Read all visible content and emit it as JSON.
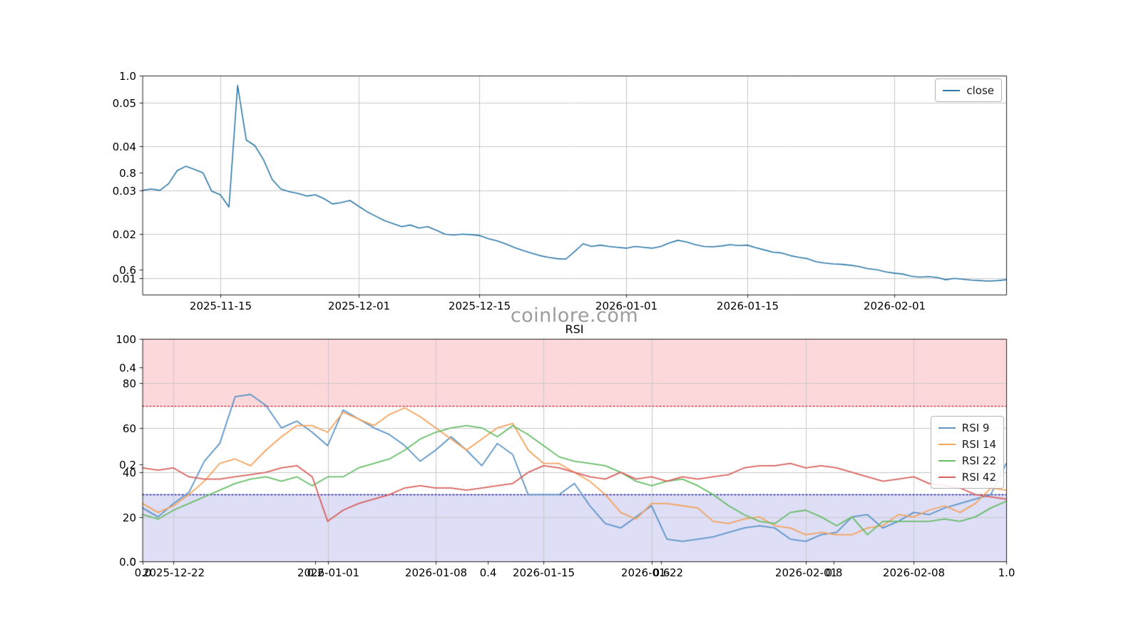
{
  "watermark": "coinlore.com",
  "fraction_axis": {
    "x_ticks": [
      "0.0",
      "0.2",
      "0.4",
      "0.6",
      "0.8",
      "1.0"
    ],
    "y_ticks": [
      "0.0",
      "0.2",
      "0.4",
      "0.6",
      "0.8",
      "1.0"
    ]
  },
  "chart_data": [
    {
      "type": "line",
      "title": "",
      "xlabel": "",
      "ylabel": "",
      "grid": true,
      "legend_position": "upper right",
      "x_start": "2025-11-06",
      "x_end": "2026-02-14",
      "x_tick_labels": [
        "2025-11-15",
        "2025-12-01",
        "2025-12-15",
        "2026-01-01",
        "2026-01-15",
        "2026-02-01"
      ],
      "y_ticks": [
        {
          "value": 0.01,
          "label": "0.01"
        },
        {
          "value": 0.02,
          "label": "0.02"
        },
        {
          "value": 0.03,
          "label": "0.03"
        },
        {
          "value": 0.04,
          "label": "0.04"
        },
        {
          "value": 0.05,
          "label": "0.05"
        }
      ],
      "ylim": [
        0.0062,
        0.0562
      ],
      "series": [
        {
          "name": "close",
          "color": "#2e79a9",
          "values": [
            0.03,
            0.0303,
            0.03,
            0.0315,
            0.0345,
            0.0355,
            0.0348,
            0.034,
            0.0298,
            0.029,
            0.0262,
            0.054,
            0.0415,
            0.0402,
            0.037,
            0.0325,
            0.0303,
            0.0297,
            0.0293,
            0.0287,
            0.029,
            0.0281,
            0.0269,
            0.0272,
            0.0277,
            0.0264,
            0.0251,
            0.0241,
            0.0231,
            0.0224,
            0.0217,
            0.0221,
            0.0214,
            0.0217,
            0.0209,
            0.02,
            0.0198,
            0.02,
            0.0199,
            0.0197,
            0.019,
            0.0185,
            0.0178,
            0.017,
            0.0163,
            0.0157,
            0.0151,
            0.0147,
            0.0144,
            0.0143,
            0.016,
            0.0178,
            0.0172,
            0.0175,
            0.0172,
            0.017,
            0.0168,
            0.0172,
            0.017,
            0.0168,
            0.0172,
            0.018,
            0.0186,
            0.0182,
            0.0176,
            0.0172,
            0.0171,
            0.0173,
            0.0176,
            0.0174,
            0.0175,
            0.0169,
            0.0164,
            0.0159,
            0.0157,
            0.0151,
            0.0147,
            0.0144,
            0.0137,
            0.0134,
            0.0132,
            0.0131,
            0.0129,
            0.0126,
            0.0121,
            0.0119,
            0.0114,
            0.0111,
            0.0109,
            0.0104,
            0.0102,
            0.0103,
            0.0101,
            0.0096,
            0.0099,
            0.0097,
            0.0095,
            0.0094,
            0.0093,
            0.0094,
            0.0096
          ]
        }
      ]
    },
    {
      "type": "line",
      "title": "RSI",
      "xlabel": "",
      "ylabel": "",
      "grid": true,
      "legend_position": "center right",
      "x_start": "2025-12-20",
      "x_end": "2026-02-14",
      "x_tick_labels": [
        "2025-12-22",
        "2026-01-01",
        "2026-01-08",
        "2026-01-15",
        "2026-01-22",
        "2026-02-01",
        "2026-02-08"
      ],
      "y_ticks": [
        {
          "value": 0,
          "label": "0"
        },
        {
          "value": 20,
          "label": "20"
        },
        {
          "value": 40,
          "label": "40"
        },
        {
          "value": 60,
          "label": "60"
        },
        {
          "value": 80,
          "label": "80"
        },
        {
          "value": 100,
          "label": "100"
        }
      ],
      "ylim": [
        0,
        100
      ],
      "bands": [
        {
          "from": 70,
          "to": 100,
          "color": "#fcd8da",
          "meaning": "overbought-zone"
        },
        {
          "from": 0,
          "to": 30,
          "color": "#dedef6",
          "meaning": "oversold-zone"
        }
      ],
      "levels": [
        {
          "value": 70,
          "color": "#cc2936",
          "meaning": "overbought-threshold"
        },
        {
          "value": 30,
          "color": "#1f1f9e",
          "meaning": "oversold-threshold"
        }
      ],
      "series": [
        {
          "name": "RSI 9",
          "color": "#5e96c8",
          "values": [
            24,
            20,
            26,
            31,
            45,
            53,
            74,
            75,
            70,
            60,
            63,
            58,
            52,
            68,
            64,
            60,
            57,
            52,
            45,
            50,
            56,
            50,
            43,
            53,
            48,
            30,
            30,
            30,
            35,
            25,
            17,
            15,
            20,
            25,
            10,
            9,
            10,
            11,
            13,
            15,
            16,
            15,
            10,
            9,
            12,
            13,
            20,
            21,
            15,
            18,
            22,
            21,
            24,
            26,
            28,
            30,
            44
          ]
        },
        {
          "name": "RSI 14",
          "color": "#f4a45f",
          "values": [
            26,
            22,
            25,
            30,
            36,
            44,
            46,
            43,
            50,
            56,
            61,
            61,
            58,
            67,
            64,
            61,
            66,
            69,
            65,
            60,
            55,
            50,
            55,
            60,
            62,
            50,
            44,
            44,
            40,
            36,
            30,
            22,
            19,
            26,
            26,
            25,
            24,
            18,
            17,
            19,
            20,
            16,
            15,
            12,
            13,
            12,
            12,
            15,
            16,
            21,
            20,
            23,
            25,
            22,
            26,
            33,
            32
          ]
        },
        {
          "name": "RSI 22",
          "color": "#68bd68",
          "values": [
            21,
            19,
            23,
            26,
            29,
            32,
            35,
            37,
            38,
            36,
            38,
            34,
            38,
            38,
            42,
            44,
            46,
            50,
            55,
            58,
            60,
            61,
            60,
            56,
            61,
            57,
            52,
            47,
            45,
            44,
            43,
            40,
            36,
            34,
            36,
            37,
            34,
            30,
            25,
            21,
            18,
            17,
            22,
            23,
            20,
            16,
            20,
            12,
            18,
            18,
            18,
            18,
            19,
            18,
            20,
            24,
            27
          ]
        },
        {
          "name": "RSI 42",
          "color": "#d9625e",
          "values": [
            42,
            41,
            42,
            38,
            37,
            37,
            38,
            39,
            40,
            42,
            43,
            38,
            18,
            23,
            26,
            28,
            30,
            33,
            34,
            33,
            33,
            32,
            33,
            34,
            35,
            40,
            43,
            42,
            40,
            38,
            37,
            40,
            37,
            38,
            36,
            38,
            37,
            38,
            39,
            42,
            43,
            43,
            44,
            42,
            43,
            42,
            40,
            38,
            36,
            37,
            38,
            35,
            34,
            33,
            30,
            29,
            28
          ]
        }
      ]
    }
  ]
}
